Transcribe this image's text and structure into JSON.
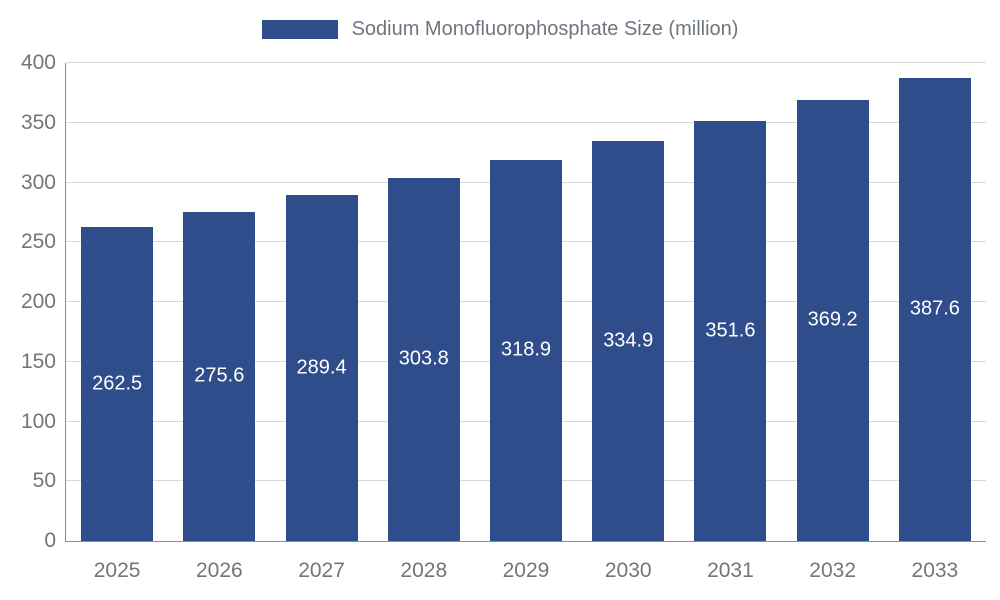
{
  "chart_data": {
    "type": "bar",
    "title": "Sodium Monofluorophosphate Size (million)",
    "categories": [
      "2025",
      "2026",
      "2027",
      "2028",
      "2029",
      "2030",
      "2031",
      "2032",
      "2033"
    ],
    "values": [
      262.5,
      275.6,
      289.4,
      303.8,
      318.9,
      334.9,
      351.6,
      369.2,
      387.6
    ],
    "value_labels": [
      "262.5",
      "275.6",
      "289.4",
      "303.8",
      "318.9",
      "334.9",
      "351.6",
      "369.2",
      "387.6"
    ],
    "xlabel": "",
    "ylabel": "",
    "ylim": [
      0,
      400
    ],
    "yticks": [
      0,
      50,
      100,
      150,
      200,
      250,
      300,
      350,
      400
    ],
    "grid": "horizontal",
    "legend_position": "top-center",
    "colors": {
      "bar": "#2f4d8a",
      "value_label": "#ffffff",
      "grid": "#d9d9d9",
      "axis": "#8c8c8c",
      "tick_text": "#757575",
      "legend_text": "#6d7680"
    }
  }
}
